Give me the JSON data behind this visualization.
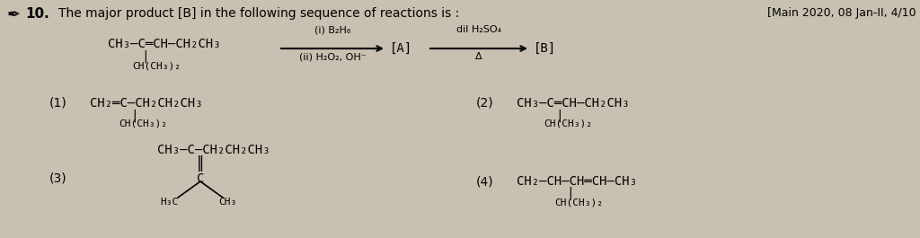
{
  "bg_color": "#c8c0b0",
  "title_num": "10.",
  "title_text": "The major product [B] in the following sequence of reactions is :",
  "ref_text": "[Main 2020, 08 Jan-II, 4/10",
  "reactant": "CH₃–C═CH–CH₂CH₃",
  "reactant_sub": "CH(CH₃)₂",
  "arrow1_top": "(i) B₂H₆",
  "arrow1_bot": "(ii) H₂O₂, OH⁻",
  "product_A": "[A]",
  "arrow2_top": "dil H₂SO₄",
  "arrow2_bot": "Δ",
  "product_B": "[B]",
  "opt1_label": "(1)",
  "opt1_main": "CH₂═C–CH₂CH₂CH₃",
  "opt1_sub": "CH(CH₃)₂",
  "opt2_label": "(2)",
  "opt2_main": "CH₃–C═CH–CH₂CH₃",
  "opt2_sub": "CH(CH₃)₂",
  "opt3_label": "(3)",
  "opt3_top": "CH₃–C–CH₂CH₂CH₃",
  "opt3_C": "C",
  "opt3_h3c": "H₃C",
  "opt3_ch3": "CH₃",
  "opt4_label": "(4)",
  "opt4_main": "CH₂–CH–CH═CH–CH₃",
  "opt4_sub": "CH(CH₃)₂",
  "fs": 10,
  "fs_s": 8,
  "fs_r": 9
}
